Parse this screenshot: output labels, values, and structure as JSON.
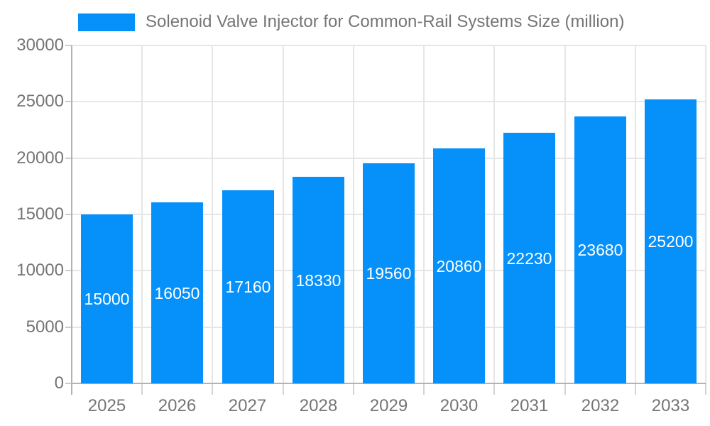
{
  "legend": {
    "label": "Solenoid Valve Injector for Common-Rail Systems Size (million)"
  },
  "chart_data": {
    "type": "bar",
    "title": "Solenoid Valve Injector for Common-Rail Systems Size (million)",
    "series_name": "Solenoid Valve Injector for Common-Rail Systems Size (million)",
    "categories": [
      "2025",
      "2026",
      "2027",
      "2028",
      "2029",
      "2030",
      "2031",
      "2032",
      "2033"
    ],
    "values": [
      15000,
      16050,
      17160,
      18330,
      19560,
      20860,
      22230,
      23680,
      25200
    ],
    "xlabel": "",
    "ylabel": "",
    "ylim": [
      0,
      30000
    ],
    "yticks": [
      0,
      5000,
      10000,
      15000,
      20000,
      25000,
      30000
    ],
    "grid": true,
    "legend_position": "top-left",
    "bar_color": "#0690fa",
    "value_label_color": "#ffffff",
    "axis_text_color": "#757575",
    "gridline_color": "#e6e6e6",
    "axis_line_color": "#b3b3b3"
  }
}
